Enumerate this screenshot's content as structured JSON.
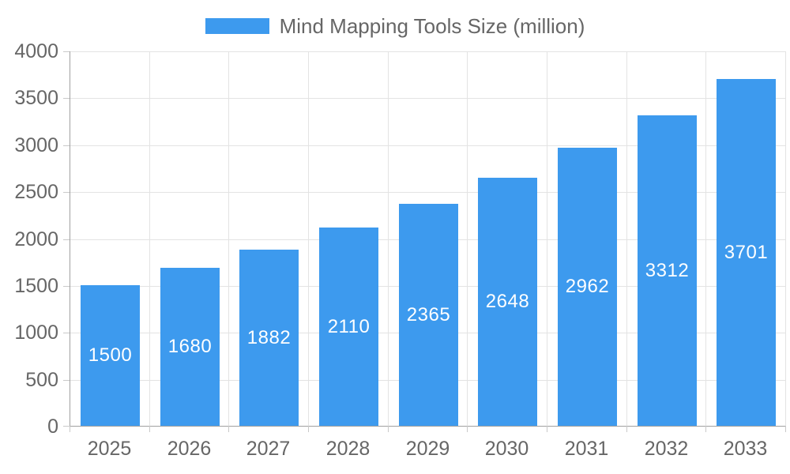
{
  "chart_data": {
    "type": "bar",
    "title": "Mind Mapping Tools Size (million)",
    "categories": [
      "2025",
      "2026",
      "2027",
      "2028",
      "2029",
      "2030",
      "2031",
      "2032",
      "2033"
    ],
    "values": [
      1500,
      1680,
      1882,
      2110,
      2365,
      2648,
      2962,
      3312,
      3701
    ],
    "xlabel": "",
    "ylabel": "",
    "ylim": [
      0,
      4000
    ],
    "y_tick_step": 500,
    "y_tick_labels": [
      "0",
      "500",
      "1000",
      "1500",
      "2000",
      "2500",
      "3000",
      "3500",
      "4000"
    ],
    "grid": true,
    "legend_position": "top",
    "data_label_position": "inside-center",
    "colors": {
      "bar": "#3D9AEE",
      "data_label": "#FFFFFF",
      "axis_text": "#666666",
      "legend_text": "#666666",
      "gridline": "#E3E3E3",
      "axis_line": "#A1A1A1",
      "tick": "#C9C9C9",
      "background": "#FFFFFF"
    }
  }
}
